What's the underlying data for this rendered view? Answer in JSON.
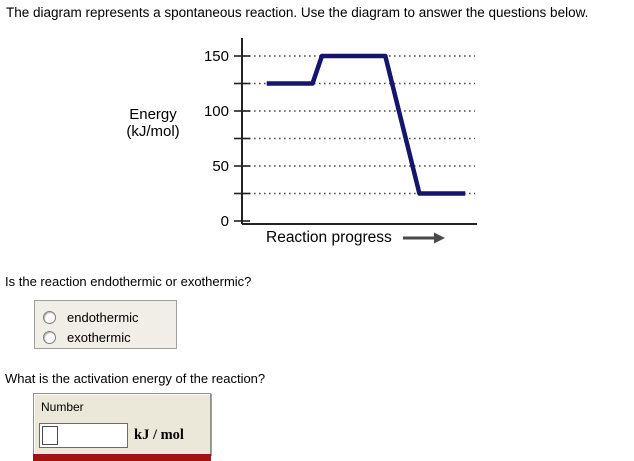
{
  "header": {
    "title": "The diagram represents a spontaneous reaction. Use the diagram to answer the questions below."
  },
  "chart_data": {
    "type": "line",
    "title": "",
    "ylabel": "Energy (kJ/mol)",
    "ylabel_line1": "Energy",
    "ylabel_line2": "(kJ/mol)",
    "xlabel": "Reaction progress",
    "ylim": [
      0,
      165
    ],
    "yticks_major": [
      0,
      50,
      100,
      150
    ],
    "yticks_minor": [
      25,
      75,
      125
    ],
    "dotted_gridlines": [
      25,
      50,
      75,
      100,
      125,
      150
    ],
    "grid": "dotted-horizontal",
    "legend": "none",
    "series": [
      {
        "name": "reaction-energy-path",
        "color": "#15156b",
        "points": [
          [
            0.105,
            125
          ],
          [
            0.3,
            125
          ],
          [
            0.34,
            150
          ],
          [
            0.61,
            150
          ],
          [
            0.755,
            25
          ],
          [
            0.95,
            25
          ]
        ]
      }
    ],
    "key_values": {
      "reactant_energy_kj_mol": 125,
      "peak_energy_kj_mol": 150,
      "product_energy_kj_mol": 25
    }
  },
  "question_endo": {
    "text": "Is the reaction endothermic or exothermic?",
    "options": [
      {
        "label": "endothermic",
        "selected": false
      },
      {
        "label": "exothermic",
        "selected": false
      }
    ]
  },
  "question_activation": {
    "text": "What is the activation energy of the reaction?",
    "panel_label": "Number",
    "input_value": "",
    "unit_label": "kJ / mol"
  },
  "colors": {
    "curve": "#15156b",
    "panel_background": "#ece8d9",
    "option_box_background": "#f0eee7",
    "red_bar": "#a11212"
  }
}
